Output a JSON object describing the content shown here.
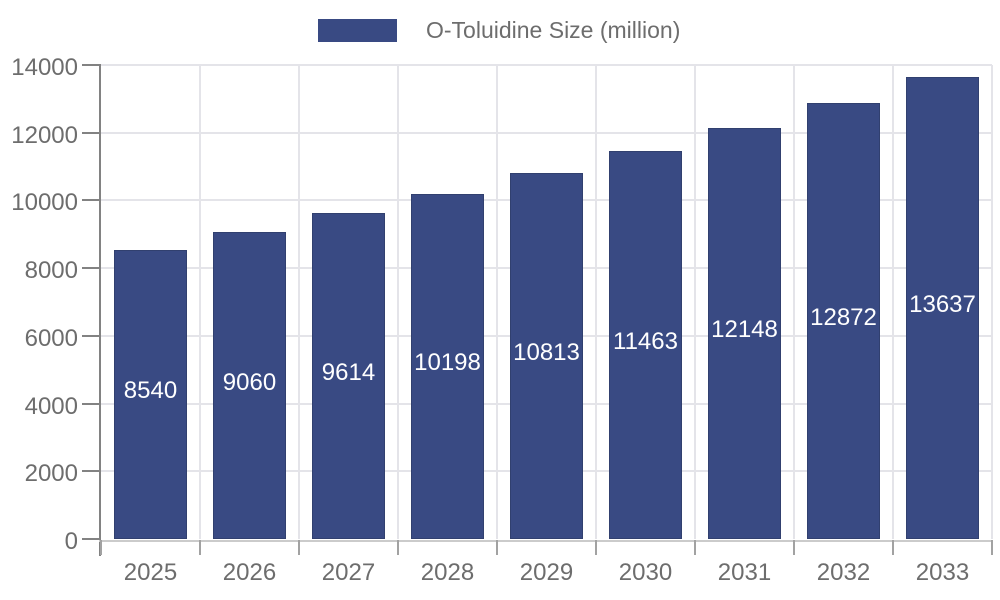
{
  "chart_data": {
    "type": "bar",
    "title": "",
    "series_name": "O-Toluidine Size (million)",
    "categories": [
      "2025",
      "2026",
      "2027",
      "2028",
      "2029",
      "2030",
      "2031",
      "2032",
      "2033"
    ],
    "values": [
      8540,
      9060,
      9614,
      10198,
      10813,
      11463,
      12148,
      12872,
      13637
    ],
    "xlabel": "",
    "ylabel": "",
    "ylim": [
      0,
      14000
    ],
    "yticks": [
      0,
      2000,
      4000,
      6000,
      8000,
      10000,
      12000,
      14000
    ],
    "grid": true,
    "legend_position": "top-center",
    "value_label_position": "inside-center",
    "colors": {
      "bar": "#394a83",
      "bar_edge": "#31406f",
      "value_label": "#ffffff",
      "axis_label": "#6d6d6d",
      "grid_line": "#e4e4e9",
      "y_axis_line": "#828282",
      "x_axis_line": "#cbcbcb",
      "x_tick": "#a2a2a2",
      "background": "#ffffff"
    }
  }
}
